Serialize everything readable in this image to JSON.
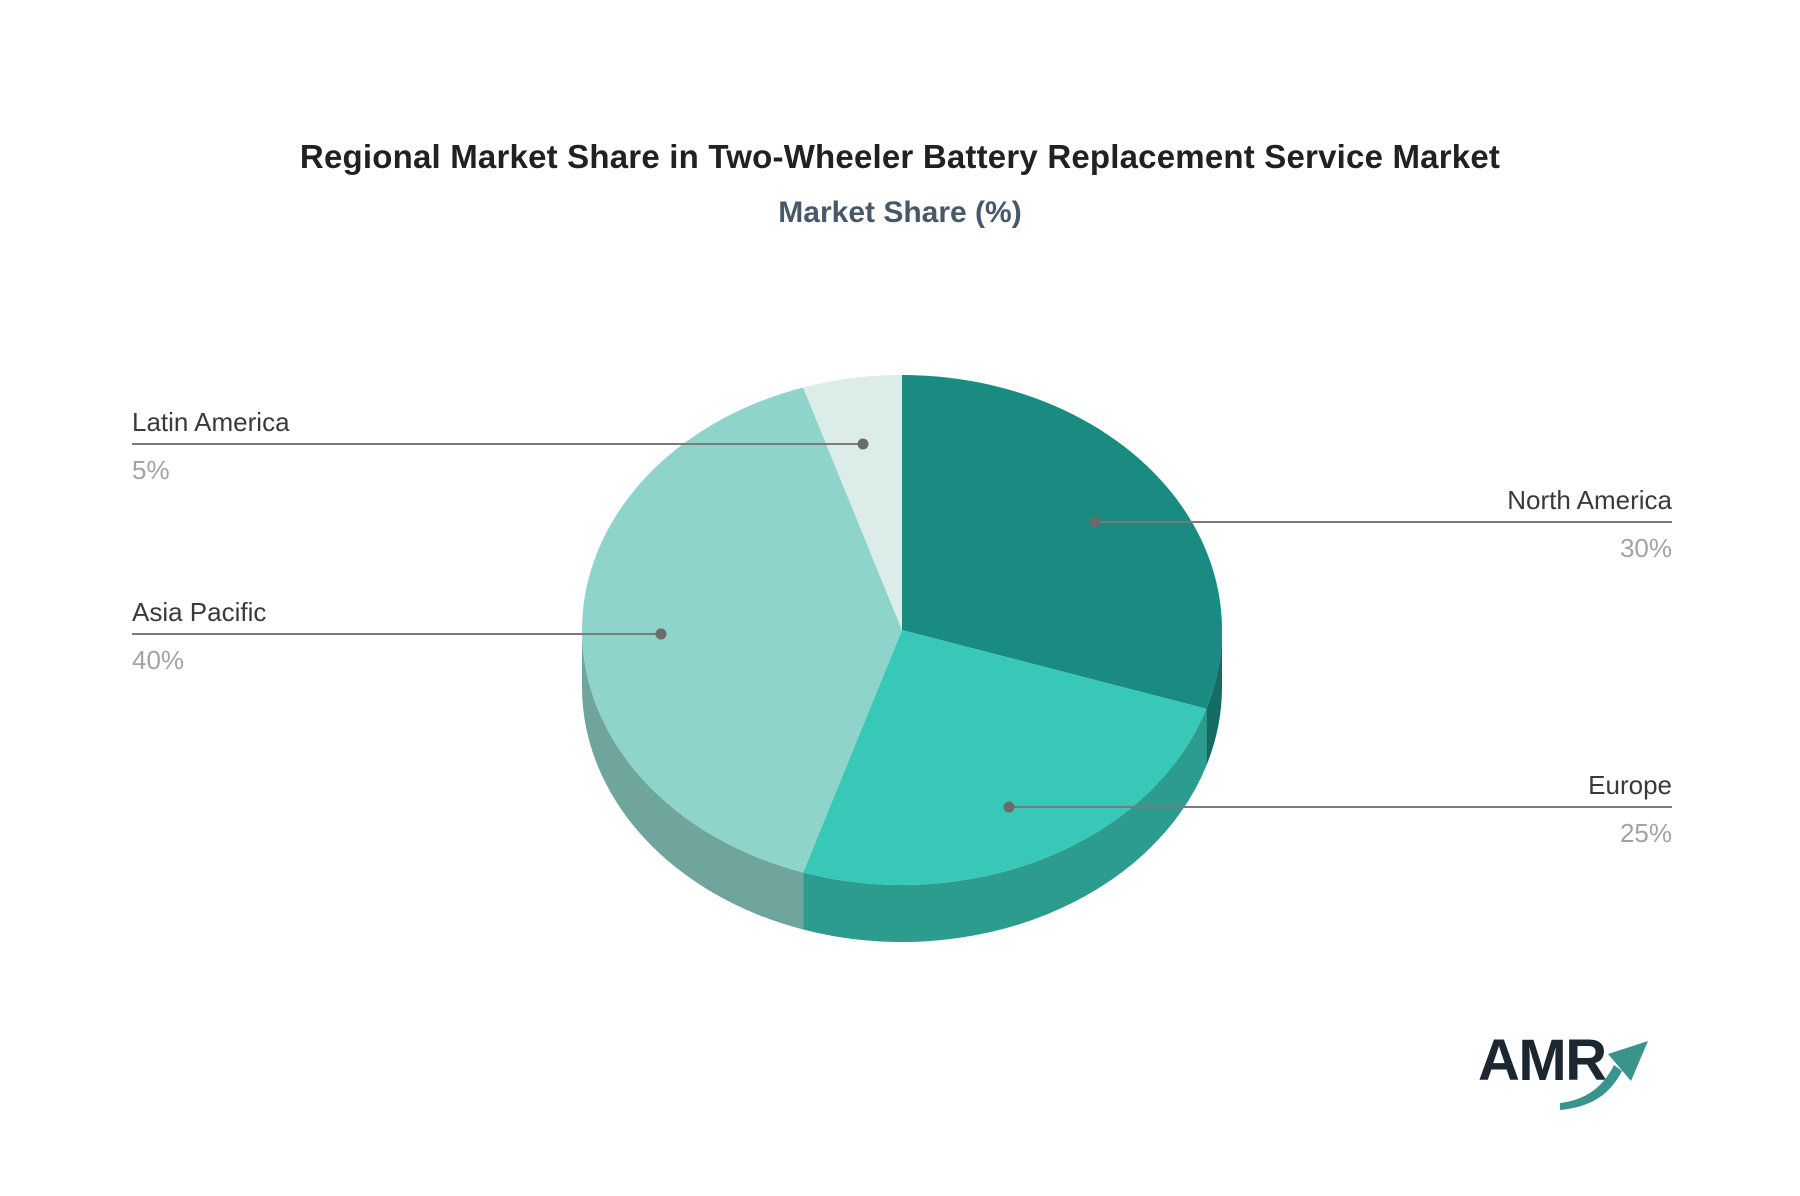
{
  "header": {
    "title": "Regional Market Share in Two-Wheeler Battery Replacement Service Market",
    "subtitle": "Market Share (%)"
  },
  "chart_data": {
    "type": "pie",
    "title": "Regional Market Share in Two-Wheeler Battery Replacement Service Market",
    "subtitle": "Market Share (%)",
    "unit": "%",
    "style": "3d-pie",
    "start_angle": "top",
    "direction": "clockwise",
    "legend_position": "none (callout labels with leader lines)",
    "segments": [
      {
        "label": "North America",
        "value": 30,
        "display": "30%",
        "color": "#1A8B80",
        "callout_side": "right"
      },
      {
        "label": "Europe",
        "value": 25,
        "display": "25%",
        "color": "#38C8B7",
        "callout_side": "right"
      },
      {
        "label": "Asia Pacific",
        "value": 40,
        "display": "40%",
        "color": "#8FD4CA",
        "callout_side": "left"
      },
      {
        "label": "Latin America",
        "value": 5,
        "display": "5%",
        "color": "#DCECE9",
        "callout_side": "left"
      }
    ]
  },
  "colors": {
    "background": "#FFFFFF",
    "title_text": "#212121",
    "subtitle_text": "#47586B",
    "callout_label_text": "#3A3A3A",
    "callout_value_text": "#A3A3A3",
    "leader_line": "#7B7B7B",
    "leader_dot": "#6B6B6B"
  },
  "logo": {
    "text": "AMR",
    "text_color": "#1D2731",
    "arrow_color": "#3B948C"
  }
}
